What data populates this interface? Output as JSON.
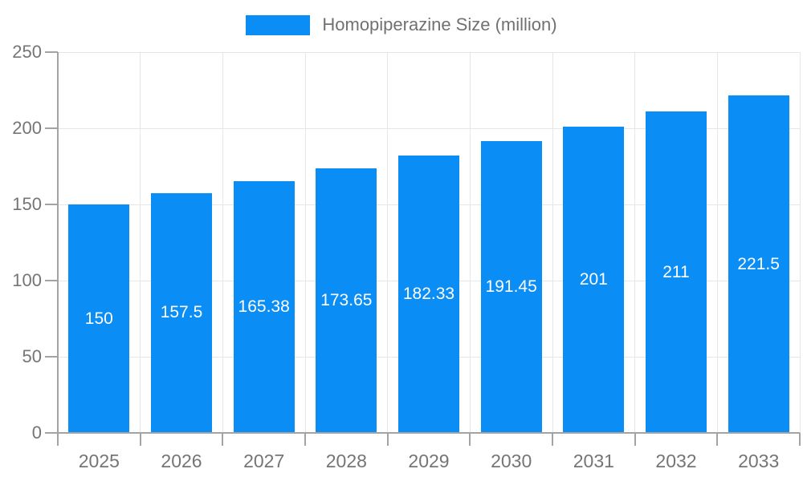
{
  "chart_data": {
    "type": "bar",
    "title": "",
    "legend": {
      "label": "Homopiperazine Size (million)",
      "position": "top"
    },
    "categories": [
      "2025",
      "2026",
      "2027",
      "2028",
      "2029",
      "2030",
      "2031",
      "2032",
      "2033"
    ],
    "series": [
      {
        "name": "Homopiperazine Size (million)",
        "values": [
          150,
          157.5,
          165.38,
          173.65,
          182.33,
          191.45,
          201,
          211,
          221.5
        ],
        "data_labels": [
          "150",
          "157.5",
          "165.38",
          "173.65",
          "182.33",
          "191.45",
          "201",
          "211",
          "221.5"
        ]
      }
    ],
    "xlabel": "",
    "ylabel": "",
    "ylim": [
      0,
      250
    ],
    "yticks": [
      0,
      50,
      100,
      150,
      200,
      250
    ],
    "grid": "both",
    "colors": {
      "bar": "#0a8df5",
      "bar_label": "#ffffff",
      "grid": "#e6e6e6",
      "axis": "#a3a3a3",
      "tick_text": "#757575",
      "legend_text": "#717171",
      "background": "#ffffff"
    }
  }
}
